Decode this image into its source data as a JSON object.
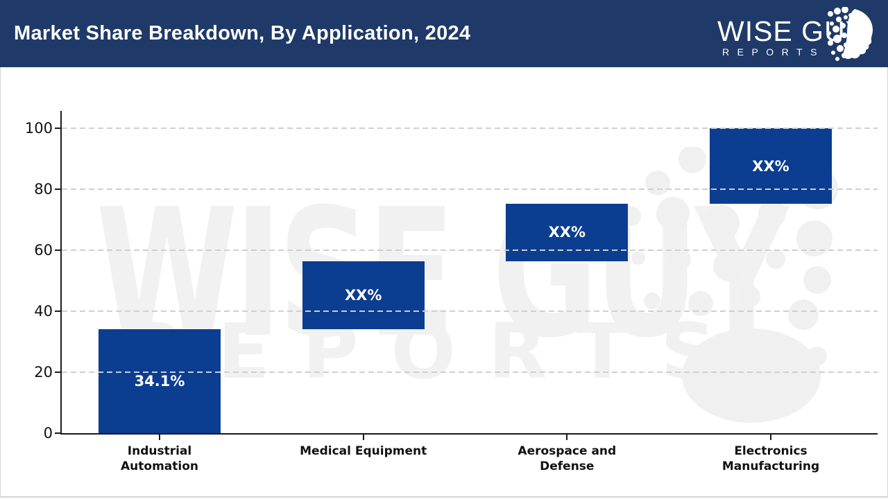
{
  "header": {
    "title": "Market Share Breakdown, By Application, 2024",
    "background_color": "#1f3a68",
    "logo": {
      "wordmark": "WISE GUY",
      "wordmark_sub": "REPORTS",
      "icon": "dotted-face-profile"
    }
  },
  "watermark": {
    "line1": "WISE GUY",
    "line2": "REPORTS",
    "color": "#f1f1f1"
  },
  "chart_data": {
    "type": "bar",
    "subtype": "waterfall",
    "title": "Market Share Breakdown, By Application, 2024",
    "categories": [
      "Industrial Automation",
      "Medical Equipment",
      "Aerospace and Defense",
      "Electronics Manufacturing"
    ],
    "category_labels_wrapped": [
      "Industrial\nAutomation",
      "Medical Equipment",
      "Aerospace and\nDefense",
      "Electronics\nManufacturing"
    ],
    "series": [
      {
        "name": "Market share (%)",
        "segments": [
          {
            "category": "Industrial Automation",
            "start": 0,
            "end": 34.1,
            "label": "34.1%"
          },
          {
            "category": "Medical Equipment",
            "start": 34.1,
            "end": 56.4,
            "label": "XX%"
          },
          {
            "category": "Aerospace and Defense",
            "start": 56.4,
            "end": 75.2,
            "label": "XX%"
          },
          {
            "category": "Electronics Manufacturing",
            "start": 75.2,
            "end": 100,
            "label": "XX%"
          }
        ]
      }
    ],
    "yticks": [
      0,
      20,
      40,
      60,
      80,
      100
    ],
    "ylim": [
      0,
      105.7
    ],
    "xlabel": "",
    "ylabel": "",
    "legend": "none",
    "grid": "horizontal-dashed",
    "grid_color": "#cfcfcf",
    "grid_over_bars": true,
    "bar_color": "#0b3d91",
    "bar_label_color": "#ffffff",
    "axis_color": "#1a1a1a"
  }
}
